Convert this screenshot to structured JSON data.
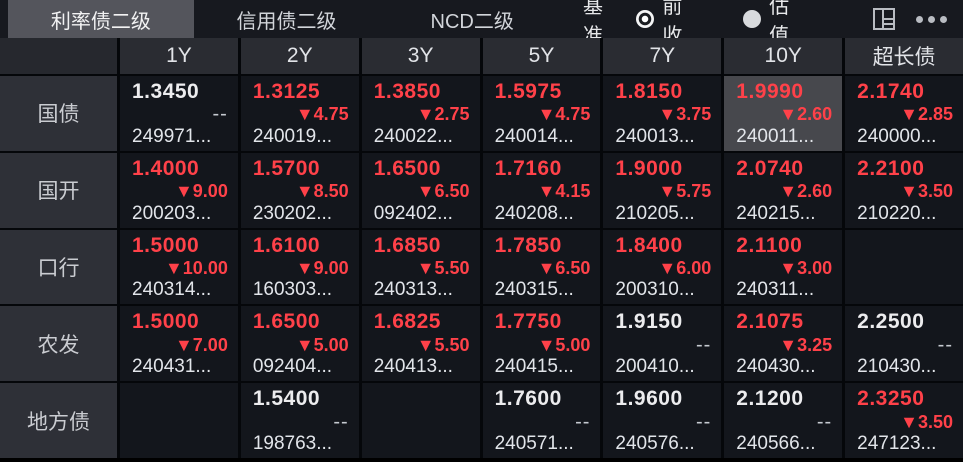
{
  "tabs": [
    {
      "label": "利率债二级",
      "selected": true
    },
    {
      "label": "信用债二级",
      "selected": false
    },
    {
      "label": "NCD二级",
      "selected": false
    }
  ],
  "benchmark": {
    "label": "基准",
    "options": [
      {
        "label": "前收",
        "selected": true
      },
      {
        "label": "估值",
        "selected": false
      }
    ]
  },
  "icons": {
    "layout": "layout-panels-icon",
    "more": "more-options-ellipsis-icon"
  },
  "colors": {
    "down_red": "#ff4149",
    "value_white": "#ececee",
    "neutral_dash": "#c6cad1",
    "code_text": "#e2e5ea",
    "selected_cell_bg": "#47484d",
    "selected_tab_bg": "#54555c"
  },
  "table": {
    "columns": [
      "1Y",
      "2Y",
      "3Y",
      "5Y",
      "7Y",
      "10Y",
      "超长债"
    ],
    "rows": [
      {
        "key": "guozhai",
        "label": "国债",
        "cells": [
          {
            "value": "1.3450",
            "color": "white",
            "change": "--",
            "code": "249971..."
          },
          {
            "value": "1.3125",
            "color": "red",
            "change": "▼4.75",
            "code": "240019..."
          },
          {
            "value": "1.3850",
            "color": "red",
            "change": "▼2.75",
            "code": "240022..."
          },
          {
            "value": "1.5975",
            "color": "red",
            "change": "▼4.75",
            "code": "240014..."
          },
          {
            "value": "1.8150",
            "color": "red",
            "change": "▼3.75",
            "code": "240013..."
          },
          {
            "value": "1.9990",
            "color": "red",
            "change": "▼2.60",
            "code": "240011...",
            "highlighted": true
          },
          {
            "value": "2.1740",
            "color": "red",
            "change": "▼2.85",
            "code": "240000..."
          }
        ]
      },
      {
        "key": "guokai",
        "label": "国开",
        "cells": [
          {
            "value": "1.4000",
            "color": "red",
            "change": "▼9.00",
            "code": "200203..."
          },
          {
            "value": "1.5700",
            "color": "red",
            "change": "▼8.50",
            "code": "230202..."
          },
          {
            "value": "1.6500",
            "color": "red",
            "change": "▼6.50",
            "code": "092402..."
          },
          {
            "value": "1.7160",
            "color": "red",
            "change": "▼4.15",
            "code": "240208..."
          },
          {
            "value": "1.9000",
            "color": "red",
            "change": "▼5.75",
            "code": "210205..."
          },
          {
            "value": "2.0740",
            "color": "red",
            "change": "▼2.60",
            "code": "240215..."
          },
          {
            "value": "2.2100",
            "color": "red",
            "change": "▼3.50",
            "code": "210220..."
          }
        ]
      },
      {
        "key": "kouhang",
        "label": "口行",
        "cells": [
          {
            "value": "1.5000",
            "color": "red",
            "change": "▼10.00",
            "code": "240314..."
          },
          {
            "value": "1.6100",
            "color": "red",
            "change": "▼9.00",
            "code": "160303..."
          },
          {
            "value": "1.6850",
            "color": "red",
            "change": "▼5.50",
            "code": "240313..."
          },
          {
            "value": "1.7850",
            "color": "red",
            "change": "▼6.50",
            "code": "240315..."
          },
          {
            "value": "1.8400",
            "color": "red",
            "change": "▼6.00",
            "code": "200310..."
          },
          {
            "value": "2.1100",
            "color": "red",
            "change": "▼3.00",
            "code": "240311..."
          },
          {
            "value": "",
            "color": "",
            "change": "",
            "code": ""
          }
        ]
      },
      {
        "key": "nongfa",
        "label": "农发",
        "cells": [
          {
            "value": "1.5000",
            "color": "red",
            "change": "▼7.00",
            "code": "240431..."
          },
          {
            "value": "1.6500",
            "color": "red",
            "change": "▼5.00",
            "code": "092404..."
          },
          {
            "value": "1.6825",
            "color": "red",
            "change": "▼5.50",
            "code": "240413..."
          },
          {
            "value": "1.7750",
            "color": "red",
            "change": "▼5.00",
            "code": "240415..."
          },
          {
            "value": "1.9150",
            "color": "white",
            "change": "--",
            "code": "200410..."
          },
          {
            "value": "2.1075",
            "color": "red",
            "change": "▼3.25",
            "code": "240430..."
          },
          {
            "value": "2.2500",
            "color": "white",
            "change": "--",
            "code": "210430..."
          }
        ]
      },
      {
        "key": "difangzhai",
        "label": "地方债",
        "cells": [
          {
            "value": "",
            "color": "",
            "change": "",
            "code": ""
          },
          {
            "value": "1.5400",
            "color": "white",
            "change": "--",
            "code": "198763..."
          },
          {
            "value": "",
            "color": "",
            "change": "",
            "code": ""
          },
          {
            "value": "1.7600",
            "color": "white",
            "change": "--",
            "code": "240571..."
          },
          {
            "value": "1.9600",
            "color": "white",
            "change": "--",
            "code": "240576..."
          },
          {
            "value": "2.1200",
            "color": "white",
            "change": "--",
            "code": "240566..."
          },
          {
            "value": "2.3250",
            "color": "red",
            "change": "▼3.50",
            "code": "247123..."
          }
        ]
      }
    ]
  }
}
